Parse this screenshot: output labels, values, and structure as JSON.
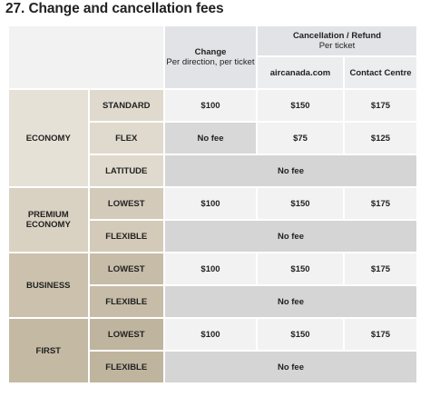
{
  "title": "27. Change and cancellation fees",
  "header": {
    "change_title": "Change",
    "change_sub": "Per direction, per ticket",
    "cancel_title": "Cancellation / Refund",
    "cancel_sub": "Per ticket",
    "col_aircanada": "aircanada.com",
    "col_contact": "Contact Centre"
  },
  "groups": [
    {
      "name": "ECONOMY",
      "rows": [
        {
          "tier": "STANDARD",
          "change": "$100",
          "online": "$150",
          "contact": "$175"
        },
        {
          "tier": "FLEX",
          "change": "No fee",
          "online": "$75",
          "contact": "$125"
        },
        {
          "tier": "LATITUDE",
          "merged": "No fee"
        }
      ]
    },
    {
      "name": "PREMIUM ECONOMY",
      "rows": [
        {
          "tier": "LOWEST",
          "change": "$100",
          "online": "$150",
          "contact": "$175"
        },
        {
          "tier": "FLEXIBLE",
          "merged": "No fee"
        }
      ]
    },
    {
      "name": "BUSINESS",
      "rows": [
        {
          "tier": "LOWEST",
          "change": "$100",
          "online": "$150",
          "contact": "$175"
        },
        {
          "tier": "FLEXIBLE",
          "merged": "No fee"
        }
      ]
    },
    {
      "name": "FIRST",
      "rows": [
        {
          "tier": "LOWEST",
          "change": "$100",
          "online": "$150",
          "contact": "$175"
        },
        {
          "tier": "FLEXIBLE",
          "merged": "No fee"
        }
      ]
    }
  ]
}
